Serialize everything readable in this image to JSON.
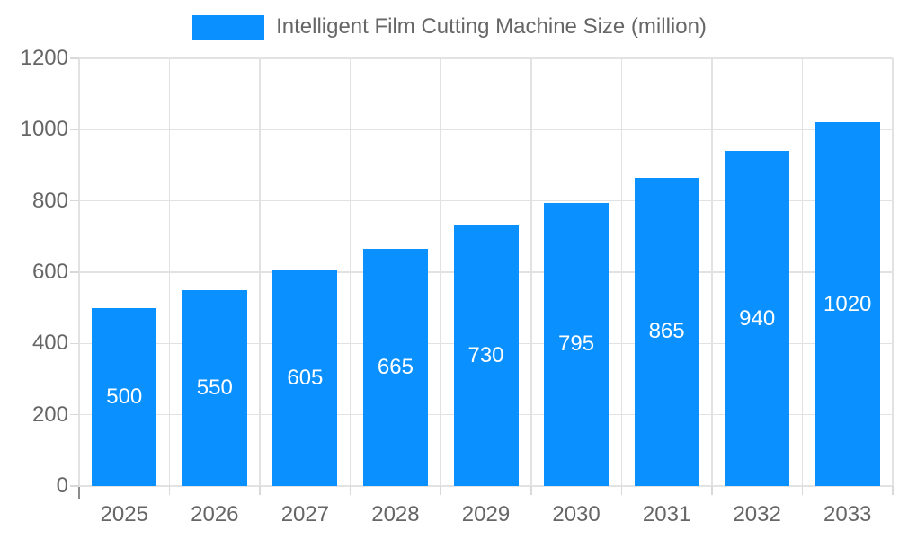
{
  "legend": {
    "label": "Intelligent Film Cutting Machine Size (million)"
  },
  "colors": {
    "bar": "#0a90ff",
    "grid": "#e2e2e2",
    "axis_line": "#8c8c8c",
    "tick": "#d9d9d9",
    "axis_text": "#666666",
    "value_text": "#ffffff"
  },
  "chart_data": {
    "type": "bar",
    "title": "Intelligent Film Cutting Machine Size (million)",
    "categories": [
      "2025",
      "2026",
      "2027",
      "2028",
      "2029",
      "2030",
      "2031",
      "2032",
      "2033"
    ],
    "values": [
      500,
      550,
      605,
      665,
      730,
      795,
      865,
      940,
      1020
    ],
    "xlabel": "",
    "ylabel": "",
    "ylim": [
      0,
      1200
    ],
    "ytick_step": 200,
    "ytick_labels": [
      "0",
      "200",
      "400",
      "600",
      "800",
      "1000",
      "1200"
    ],
    "grid": true,
    "legend_position": "top",
    "value_label_position": "inside-center"
  }
}
